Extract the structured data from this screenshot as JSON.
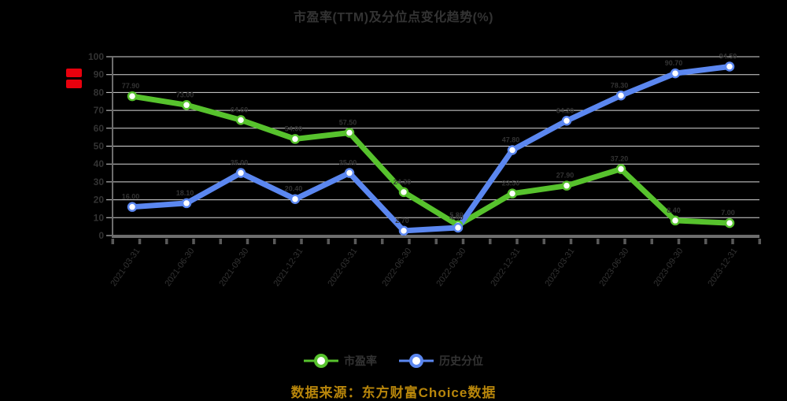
{
  "title": "市盈率(TTM)及分位点变化趋势(%)",
  "watermark": "数据来源：东方财富Choice数据",
  "colors": {
    "background": "#000000",
    "text": "#333333",
    "grid": "#d8d8d8",
    "axis": "#6e6e6e",
    "tick": "#595959",
    "red_marker": "#e8000d",
    "watermark": "#b8860b",
    "series_green": "#57c22d",
    "series_blue": "#5b87f0"
  },
  "chart_data": {
    "type": "line",
    "title": "市盈率(TTM)及分位点变化趋势(%)",
    "xlabel": "",
    "ylabel": "",
    "ylim": [
      0,
      100
    ],
    "yticks": [
      0,
      10,
      20,
      30,
      40,
      50,
      60,
      70,
      80,
      90,
      100
    ],
    "grid": true,
    "legend_position": "bottom",
    "categories": [
      "2021-03-31",
      "2021-06-30",
      "2021-09-30",
      "2021-12-31",
      "2022-03-31",
      "2022-06-30",
      "2022-09-30",
      "2022-12-31",
      "2023-03-31",
      "2023-06-30",
      "2023-09-30",
      "2023-12-31"
    ],
    "series": [
      {
        "name": "市盈率",
        "color": "#57c22d",
        "values": [
          77.9,
          73.0,
          64.6,
          54.0,
          57.5,
          24.3,
          5.8,
          23.5,
          27.9,
          37.2,
          8.4,
          7.0
        ]
      },
      {
        "name": "历史分位",
        "color": "#5b87f0",
        "values": [
          16.0,
          18.1,
          35.0,
          20.4,
          35.0,
          2.7,
          4.4,
          47.8,
          64.2,
          78.3,
          90.7,
          94.5
        ]
      }
    ]
  }
}
